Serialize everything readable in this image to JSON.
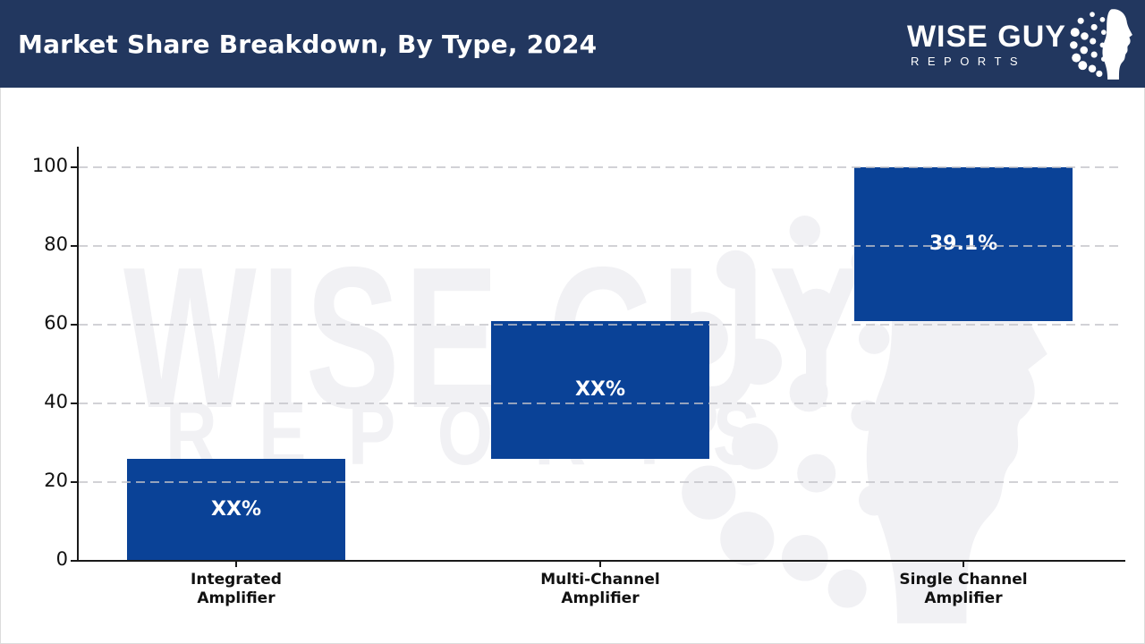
{
  "header": {
    "title": "Market Share Breakdown, By Type, 2024",
    "logo": {
      "line1": "WISE GUY",
      "line2": "REPORTS"
    }
  },
  "watermark": {
    "line1": "WISE GUY",
    "line2": "REPORTS"
  },
  "colors": {
    "header_bg": "#22375f",
    "bar": "#0a4297",
    "axis": "#1a1a1a",
    "gridline": "#c8c8cd",
    "watermark": "#f1f1f4",
    "bar_label_text": "#ffffff",
    "title_text": "#ffffff"
  },
  "chart_data": {
    "type": "bar",
    "variant": "waterfall-stacked",
    "title": "Market Share Breakdown, By Type, 2024",
    "categories": [
      "Integrated Amplifier",
      "Multi-Channel Amplifier",
      "Single Channel Amplifier"
    ],
    "category_lines": [
      [
        "Integrated",
        "Amplifier"
      ],
      [
        "Multi-Channel",
        "Amplifier"
      ],
      [
        "Single Channel",
        "Amplifier"
      ]
    ],
    "segments": [
      {
        "category": "Integrated Amplifier",
        "start": 0,
        "end": 26,
        "value": 26,
        "label": "XX%"
      },
      {
        "category": "Multi-Channel Amplifier",
        "start": 26,
        "end": 61,
        "value": 35,
        "label": "XX%"
      },
      {
        "category": "Single Channel Amplifier",
        "start": 61,
        "end": 100,
        "value": 39.1,
        "label": "39.1%"
      }
    ],
    "yticks": [
      0,
      20,
      40,
      60,
      80,
      100
    ],
    "ylim": [
      0,
      105
    ],
    "xlabel": "",
    "ylabel": "",
    "grid": "horizontal-dashed",
    "legend": "none"
  }
}
